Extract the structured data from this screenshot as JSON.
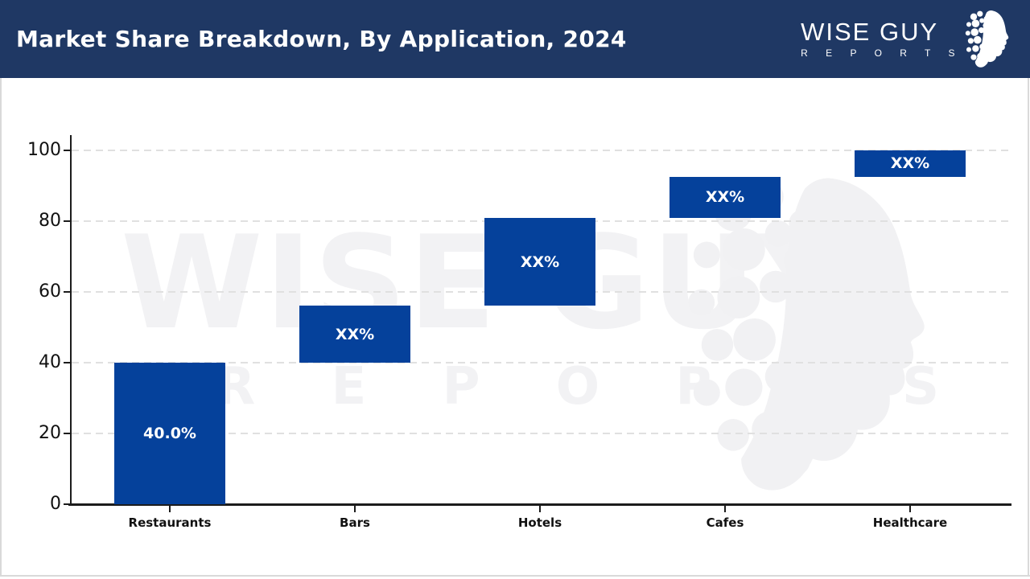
{
  "header": {
    "title": "Market Share Breakdown, By Application, 2024",
    "bg_color": "#1f3864",
    "logo": {
      "line1": "WISE GUY",
      "line2": "R E P O R T S"
    }
  },
  "watermark": {
    "line1": "WISE GUY",
    "line2": "R E P O R T S"
  },
  "chart_data": {
    "type": "bar",
    "subtype": "waterfall",
    "title": "Market Share Breakdown, By Application, 2024",
    "categories": [
      "Restaurants",
      "Bars",
      "Hotels",
      "Cafes",
      "Healthcare"
    ],
    "series": [
      {
        "name": "Market Share",
        "values": [
          40.0,
          16.0,
          24.8,
          11.7,
          7.5
        ],
        "segments": [
          [
            0,
            40
          ],
          [
            40,
            56
          ],
          [
            56,
            80.8
          ],
          [
            80.8,
            92.5
          ],
          [
            92.5,
            100
          ]
        ]
      }
    ],
    "bar_labels": [
      "40.0%",
      "XX%",
      "XX%",
      "XX%",
      "XX%"
    ],
    "xlabel": "",
    "ylabel": "",
    "ylim": [
      0,
      103.7
    ],
    "yticks": [
      0,
      20,
      40,
      60,
      80,
      100
    ],
    "grid": {
      "axis": "y",
      "style": "dashed",
      "color": "#e0e0e0"
    },
    "legend": "none",
    "bar_color": "#05419b",
    "bar_label_color": "#ffffff",
    "axis_color": "#1c1c1c"
  }
}
